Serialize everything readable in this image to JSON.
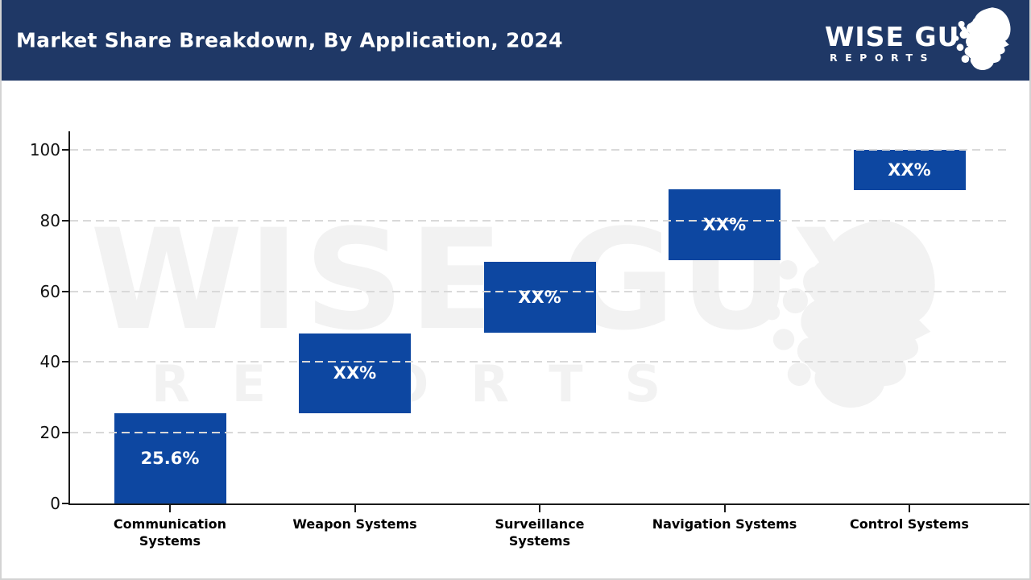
{
  "header": {
    "title": "Market Share Breakdown, By Application, 2024",
    "logo": {
      "wordmark": "WISE GUY",
      "subtext": "REPORTS"
    }
  },
  "watermark": {
    "wordmark": "WISE GUY",
    "subtext": "REPORTS"
  },
  "chart_data": {
    "type": "bar",
    "subtype": "waterfall",
    "title": "Market Share Breakdown, By Application, 2024",
    "categories": [
      "Communication Systems",
      "Weapon Systems",
      "Surveillance Systems",
      "Navigation Systems",
      "Control Systems"
    ],
    "category_label_lines": [
      [
        "Communication",
        "Systems"
      ],
      [
        "Weapon Systems"
      ],
      [
        "Surveillance",
        "Systems"
      ],
      [
        "Navigation Systems"
      ],
      [
        "Control Systems"
      ]
    ],
    "segments": [
      {
        "category": "Communication Systems",
        "start": 0,
        "end": 25.6,
        "label": "25.6%"
      },
      {
        "category": "Weapon Systems",
        "start": 25.6,
        "end": 48.0,
        "label": "XX%"
      },
      {
        "category": "Surveillance Systems",
        "start": 48.2,
        "end": 68.4,
        "label": "XX%"
      },
      {
        "category": "Navigation Systems",
        "start": 68.8,
        "end": 88.8,
        "label": "XX%"
      },
      {
        "category": "Control Systems",
        "start": 88.6,
        "end": 100.0,
        "label": "XX%"
      }
    ],
    "xlabel": "",
    "ylabel": "",
    "ylim": [
      0,
      100
    ],
    "yticks": [
      0,
      20,
      40,
      60,
      80,
      100
    ],
    "grid": "horizontal-dashed",
    "legend": "none",
    "bar_color": "#0d47a1",
    "value_label_color": "#ffffff"
  },
  "colors": {
    "header_bg": "#1f3866",
    "bar": "#0d47a1",
    "gridline": "#d9d9d9",
    "watermark": "#f2f2f2",
    "axis": "#1a1a1a",
    "background": "#ffffff"
  }
}
